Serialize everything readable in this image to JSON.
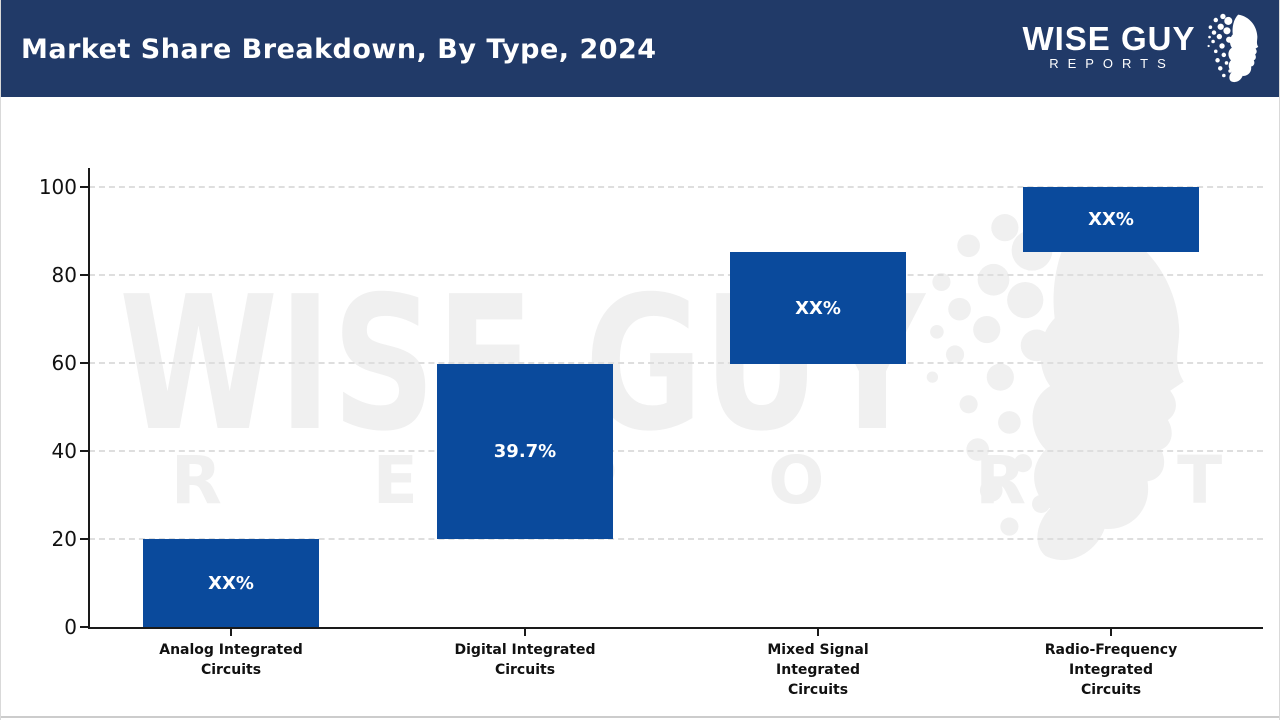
{
  "header": {
    "title": "Market Share Breakdown, By Type, 2024",
    "logo": {
      "line1": "WISE GUY",
      "line2": "REPORTS",
      "head_icon": "dotted-head-profile"
    },
    "background_color": "#213a68"
  },
  "watermark": {
    "line1": "WISE GUY",
    "line2": "R E P O R T S",
    "head_icon": "dotted-head-profile",
    "color": "#f0f0f0"
  },
  "chart_data": {
    "type": "bar",
    "subtype": "waterfall",
    "title": "Market Share Breakdown, By Type, 2024",
    "categories": [
      "Analog Integrated Circuits",
      "Digital Integrated Circuits",
      "Mixed Signal Integrated Circuits",
      "Radio-Frequency Integrated Circuits"
    ],
    "category_lines": [
      [
        "Analog Integrated",
        "Circuits"
      ],
      [
        "Digital Integrated",
        "Circuits"
      ],
      [
        "Mixed Signal",
        "Integrated",
        "Circuits"
      ],
      [
        "Radio-Frequency",
        "Integrated",
        "Circuits"
      ]
    ],
    "bars": [
      {
        "label": "XX%",
        "start": 0,
        "end": 20,
        "value_shown": "XX%",
        "value_estimate": 20
      },
      {
        "label": "39.7%",
        "start": 20,
        "end": 59.7,
        "value_shown": "39.7%",
        "value_estimate": 39.7
      },
      {
        "label": "XX%",
        "start": 59.7,
        "end": 85.2,
        "value_shown": "XX%",
        "value_estimate": 25.5
      },
      {
        "label": "XX%",
        "start": 85.2,
        "end": 100,
        "value_shown": "XX%",
        "value_estimate": 14.8
      }
    ],
    "y_ticks": [
      0,
      20,
      40,
      60,
      80,
      100
    ],
    "ylim": [
      0,
      105
    ],
    "xlabel": "",
    "ylabel": "",
    "grid": "horizontal dashed",
    "legend": "none",
    "bar_color": "#0a4a9c",
    "bar_label_color": "#ffffff"
  }
}
